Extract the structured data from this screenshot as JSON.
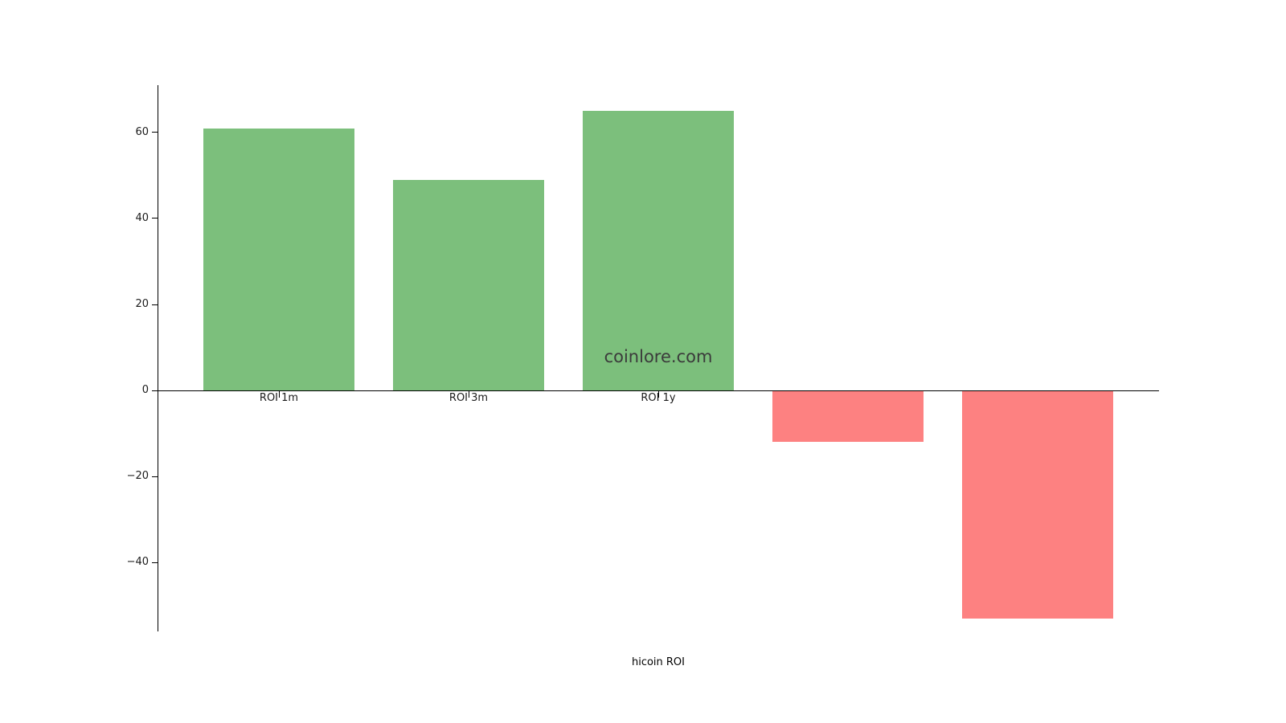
{
  "chart_data": {
    "type": "bar",
    "title": "",
    "xlabel": "hicoin ROI",
    "ylabel": "",
    "watermark": "coinlore.com",
    "categories": [
      "ROI 1m",
      "ROI 3m",
      "ROI 1y",
      "",
      ""
    ],
    "values": [
      61,
      49,
      65,
      -12,
      -53
    ],
    "bar_colors": [
      "#7cbf7c",
      "#7cbf7c",
      "#7cbf7c",
      "#fd8181",
      "#fd8181"
    ],
    "positive_color": "#7cbf7c",
    "negative_color": "#fd8181",
    "yticks": [
      60,
      40,
      20,
      0,
      -20,
      -40
    ],
    "ylim": [
      -56,
      71
    ],
    "xlim": [
      -0.64,
      4.64
    ],
    "bar_width": 0.8,
    "grid": false,
    "legend": false,
    "background": "#ffffff",
    "axis_color": "#000000",
    "tick_label_color": "#1a1a1a",
    "watermark_color": "#3b3b3b"
  }
}
